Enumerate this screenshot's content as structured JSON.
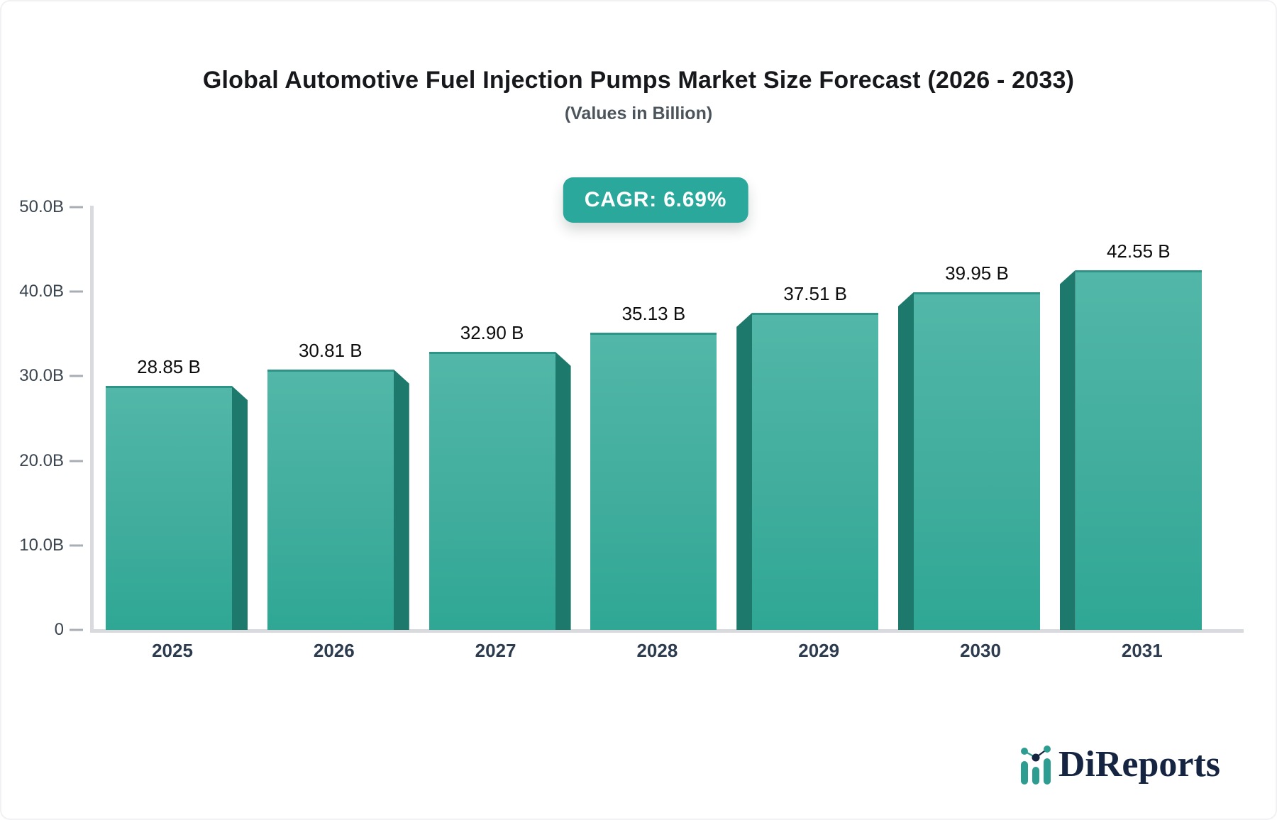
{
  "page": {
    "title": "Global Automotive Fuel Injection Pumps Market Size Forecast (2026 - 2033)",
    "subtitle": "(Values in Billion)",
    "badge_label": "CAGR: 6.69%",
    "logo_text": "DiReports"
  },
  "chart_data": {
    "type": "bar",
    "title": "Global Automotive Fuel Injection Pumps Market Size Forecast (2026 - 2033)",
    "subtitle": "(Values in Billion)",
    "annotation": "CAGR: 6.69%",
    "categories": [
      "2025",
      "2026",
      "2027",
      "2028",
      "2029",
      "2030",
      "2031"
    ],
    "values": [
      28.85,
      30.81,
      32.9,
      35.13,
      37.51,
      39.95,
      42.55
    ],
    "value_labels": [
      "28.85 B",
      "30.81 B",
      "32.90 B",
      "35.13 B",
      "37.51 B",
      "39.95 B",
      "42.55 B"
    ],
    "xlabel": "",
    "ylabel": "",
    "ylim": [
      0,
      50
    ],
    "yticks": [
      50,
      40,
      30,
      20,
      10,
      0
    ],
    "ytick_labels": [
      "50.0B",
      "40.0B",
      "30.0B",
      "20.0B",
      "10.0B",
      "0"
    ],
    "grid": false,
    "legend": null
  },
  "colors": {
    "bar_face_top": "#52b7a8",
    "bar_face_bottom": "#2fa795",
    "bar_side": "#1e796d",
    "badge_bg": "#2aa89c",
    "badge_text": "#ffffff",
    "axis_line": "#d8dade",
    "tick_dash": "#a8aeb6",
    "ytick_text": "#3a4550",
    "xtick_text": "#2d3b4f",
    "value_text": "#0d0d0d",
    "title_text": "#16181b",
    "subtitle_text": "#4c545c",
    "logo_teal": "#2d9d92",
    "logo_navy": "#152440"
  }
}
